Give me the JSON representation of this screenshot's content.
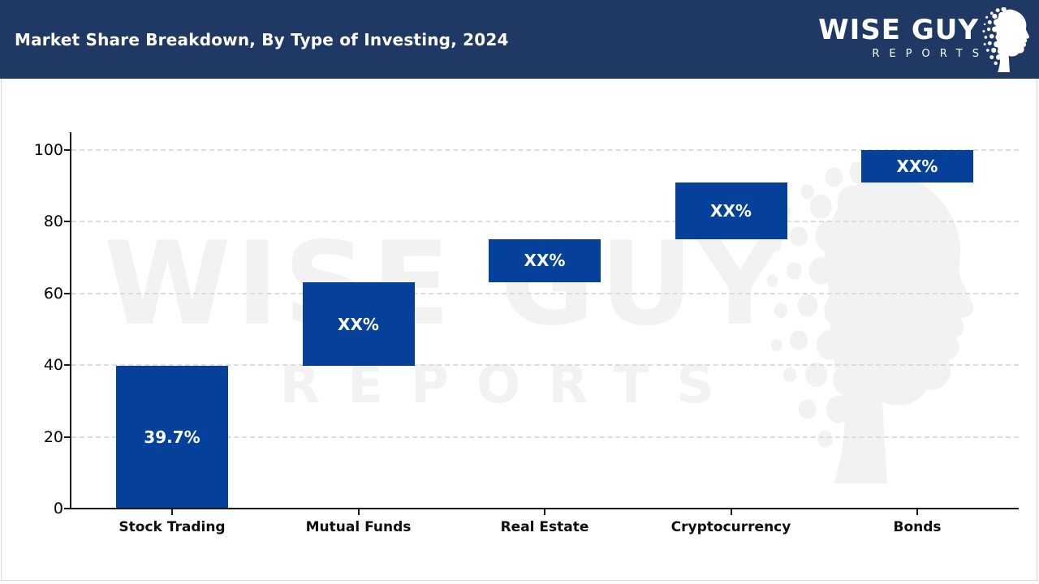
{
  "header": {
    "title": "Market Share Breakdown, By Type of Investing, 2024",
    "logo": {
      "line1": "WISE GUY",
      "line2": "REPORTS"
    }
  },
  "watermark": {
    "line1": "WISE GUY",
    "line2": "REPORTS"
  },
  "chart_data": {
    "type": "bar",
    "subtype": "waterfall",
    "title": "Market Share Breakdown, By Type of Investing, 2024",
    "unit": "%",
    "categories": [
      "Stock Trading",
      "Mutual Funds",
      "Real Estate",
      "Cryptocurrency",
      "Bonds"
    ],
    "segments": [
      {
        "category": "Stock Trading",
        "start": 0,
        "end": 39.7,
        "label": "39.7%"
      },
      {
        "category": "Mutual Funds",
        "start": 39.7,
        "end": 63.1,
        "label": "XX%"
      },
      {
        "category": "Real Estate",
        "start": 63.1,
        "end": 75.0,
        "label": "XX%"
      },
      {
        "category": "Cryptocurrency",
        "start": 75.0,
        "end": 90.9,
        "label": "XX%"
      },
      {
        "category": "Bonds",
        "start": 90.9,
        "end": 99.8,
        "label": "XX%"
      }
    ],
    "yticks": [
      0,
      20,
      40,
      60,
      80,
      100
    ],
    "ylim": [
      0,
      105
    ],
    "grid": "horizontal-dashed",
    "legend": "none",
    "bar_color": "#05419B",
    "bar_label_color": "#ffffff"
  },
  "colors": {
    "header_bg": "#1f3864",
    "bar": "#05419B",
    "grid": "#dcdcdc",
    "axis": "#1a1a1a",
    "watermark": "#f2f2f2",
    "card_border": "#d8d8d8"
  }
}
